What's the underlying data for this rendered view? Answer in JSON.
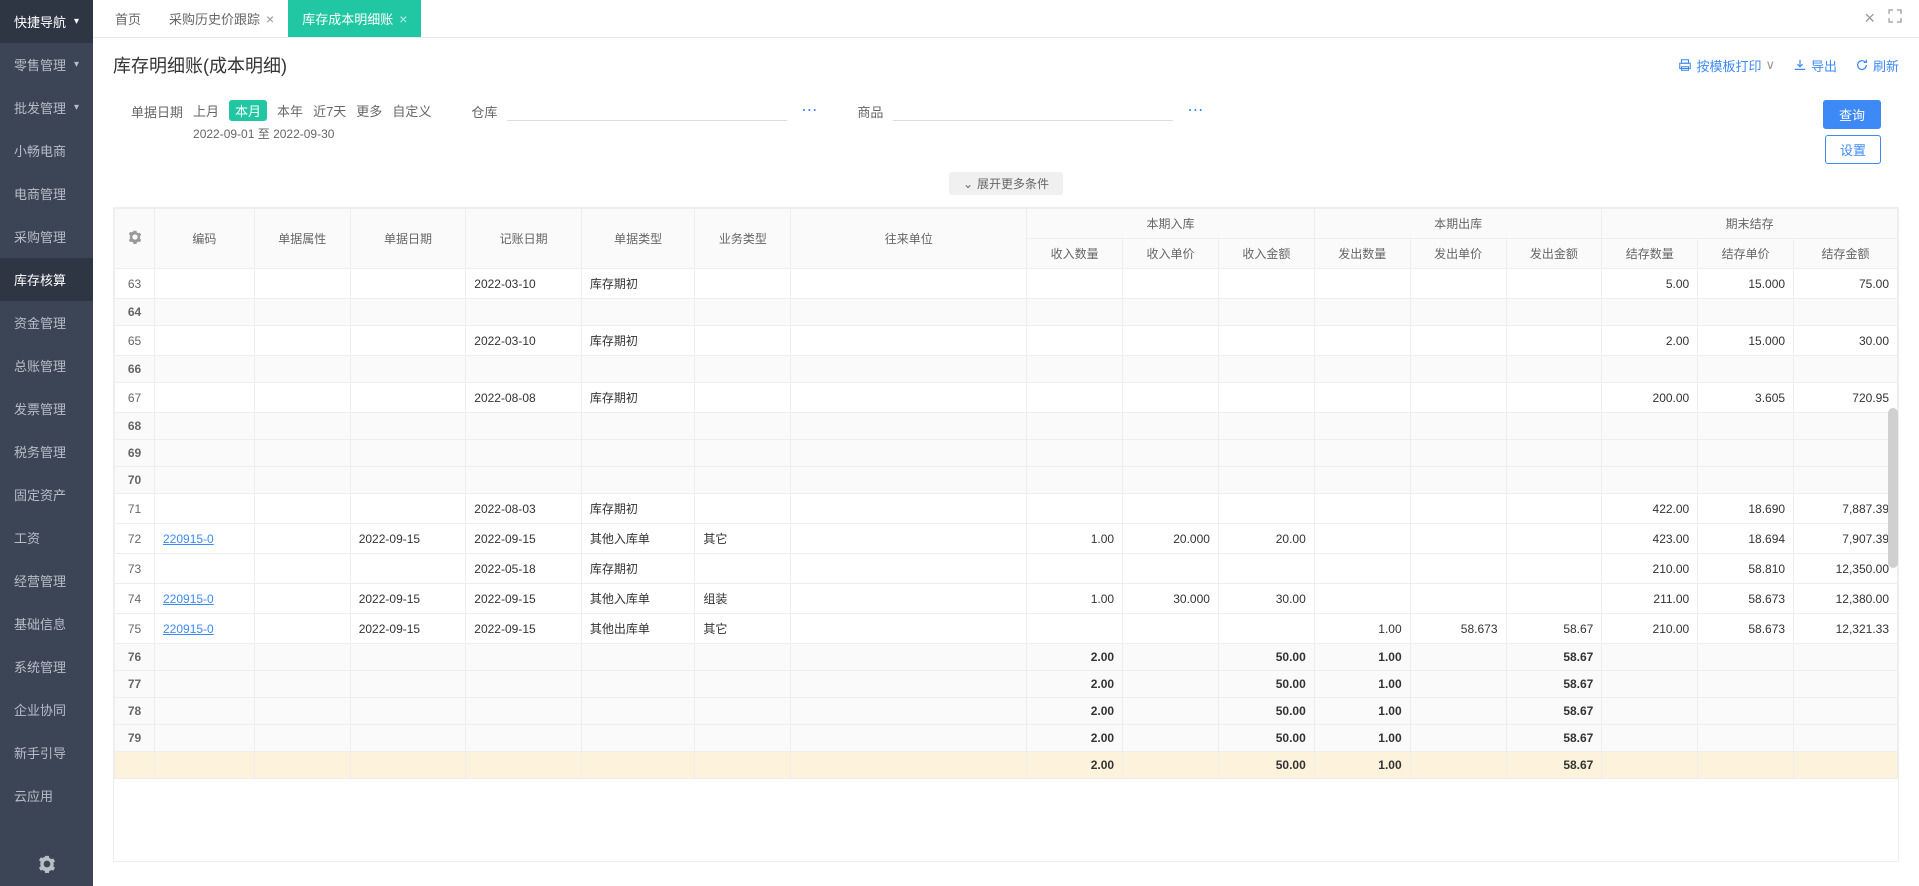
{
  "sidebar": {
    "items": [
      {
        "label": "快捷导航",
        "caret": true
      },
      {
        "label": "零售管理",
        "caret": true
      },
      {
        "label": "批发管理",
        "caret": true
      },
      {
        "label": "小畅电商"
      },
      {
        "label": "电商管理"
      },
      {
        "label": "采购管理"
      },
      {
        "label": "库存核算",
        "active": true
      },
      {
        "label": "资金管理"
      },
      {
        "label": "总账管理"
      },
      {
        "label": "发票管理"
      },
      {
        "label": "税务管理"
      },
      {
        "label": "固定资产"
      },
      {
        "label": "工资"
      },
      {
        "label": "经营管理"
      },
      {
        "label": "基础信息"
      },
      {
        "label": "系统管理"
      },
      {
        "label": "企业协同"
      },
      {
        "label": "新手引导"
      },
      {
        "label": "云应用"
      }
    ]
  },
  "tabs": [
    {
      "label": "首页",
      "closable": false
    },
    {
      "label": "采购历史价跟踪",
      "closable": true
    },
    {
      "label": "库存成本明细账",
      "closable": true,
      "active": true
    }
  ],
  "page_title": "库存明细账(成本明细)",
  "actions": {
    "print": "按模板打印",
    "export": "导出",
    "refresh": "刷新"
  },
  "filter": {
    "date_label": "单据日期",
    "date_opts": [
      "上月",
      "本月",
      "本年",
      "近7天",
      "更多",
      "自定义"
    ],
    "date_active": "本月",
    "date_range": "2022-09-01 至 2022-09-30",
    "warehouse_label": "仓库",
    "goods_label": "商品",
    "query": "查询",
    "settings": "设置",
    "expand": "展开更多条件"
  },
  "headers": {
    "code": "编码",
    "attr": "单据属性",
    "date": "单据日期",
    "acct_date": "记账日期",
    "type": "单据类型",
    "biz": "业务类型",
    "partner": "往来单位",
    "in_group": "本期入库",
    "in_qty": "收入数量",
    "in_price": "收入单价",
    "in_amt": "收入金额",
    "out_group": "本期出库",
    "out_qty": "发出数量",
    "out_price": "发出单价",
    "out_amt": "发出金额",
    "bal_group": "期末结存",
    "bal_qty": "结存数量",
    "bal_price": "结存单价",
    "bal_amt": "结存金额"
  },
  "rows": [
    {
      "idx": "63",
      "acct_date": "2022-03-10",
      "type": "库存期初",
      "bal_qty": "5.00",
      "bal_price": "15.000",
      "bal_amt": "75.00"
    },
    {
      "idx": "64",
      "bold": true
    },
    {
      "idx": "65",
      "acct_date": "2022-03-10",
      "type": "库存期初",
      "bal_qty": "2.00",
      "bal_price": "15.000",
      "bal_amt": "30.00"
    },
    {
      "idx": "66",
      "bold": true
    },
    {
      "idx": "67",
      "acct_date": "2022-08-08",
      "type": "库存期初",
      "bal_qty": "200.00",
      "bal_price": "3.605",
      "bal_amt": "720.95"
    },
    {
      "idx": "68",
      "bold": true
    },
    {
      "idx": "69",
      "bold": true
    },
    {
      "idx": "70",
      "bold": true
    },
    {
      "idx": "71",
      "acct_date": "2022-08-03",
      "type": "库存期初",
      "bal_qty": "422.00",
      "bal_price": "18.690",
      "bal_amt": "7,887.39"
    },
    {
      "idx": "72",
      "code": "220915-0",
      "date": "2022-09-15",
      "acct_date": "2022-09-15",
      "type": "其他入库单",
      "biz": "其它",
      "in_qty": "1.00",
      "in_price": "20.000",
      "in_amt": "20.00",
      "bal_qty": "423.00",
      "bal_price": "18.694",
      "bal_amt": "7,907.39"
    },
    {
      "idx": "73",
      "acct_date": "2022-05-18",
      "type": "库存期初",
      "bal_qty": "210.00",
      "bal_price": "58.810",
      "bal_amt": "12,350.00"
    },
    {
      "idx": "74",
      "code": "220915-0",
      "date": "2022-09-15",
      "acct_date": "2022-09-15",
      "type": "其他入库单",
      "biz": "组装",
      "in_qty": "1.00",
      "in_price": "30.000",
      "in_amt": "30.00",
      "bal_qty": "211.00",
      "bal_price": "58.673",
      "bal_amt": "12,380.00"
    },
    {
      "idx": "75",
      "code": "220915-0",
      "date": "2022-09-15",
      "acct_date": "2022-09-15",
      "type": "其他出库单",
      "biz": "其它",
      "out_qty": "1.00",
      "out_price": "58.673",
      "out_amt": "58.67",
      "bal_qty": "210.00",
      "bal_price": "58.673",
      "bal_amt": "12,321.33"
    },
    {
      "idx": "76",
      "bold": true,
      "in_qty": "2.00",
      "in_amt": "50.00",
      "out_qty": "1.00",
      "out_amt": "58.67"
    },
    {
      "idx": "77",
      "bold": true,
      "in_qty": "2.00",
      "in_amt": "50.00",
      "out_qty": "1.00",
      "out_amt": "58.67"
    },
    {
      "idx": "78",
      "bold": true,
      "in_qty": "2.00",
      "in_amt": "50.00",
      "out_qty": "1.00",
      "out_amt": "58.67"
    },
    {
      "idx": "79",
      "bold": true,
      "in_qty": "2.00",
      "in_amt": "50.00",
      "out_qty": "1.00",
      "out_amt": "58.67"
    },
    {
      "total": true,
      "in_qty": "2.00",
      "in_amt": "50.00",
      "out_qty": "1.00",
      "out_amt": "58.67"
    }
  ],
  "colors": {
    "accent": "#21c7a2",
    "primary": "#3d8af7",
    "sidebar": "#3c4556"
  }
}
